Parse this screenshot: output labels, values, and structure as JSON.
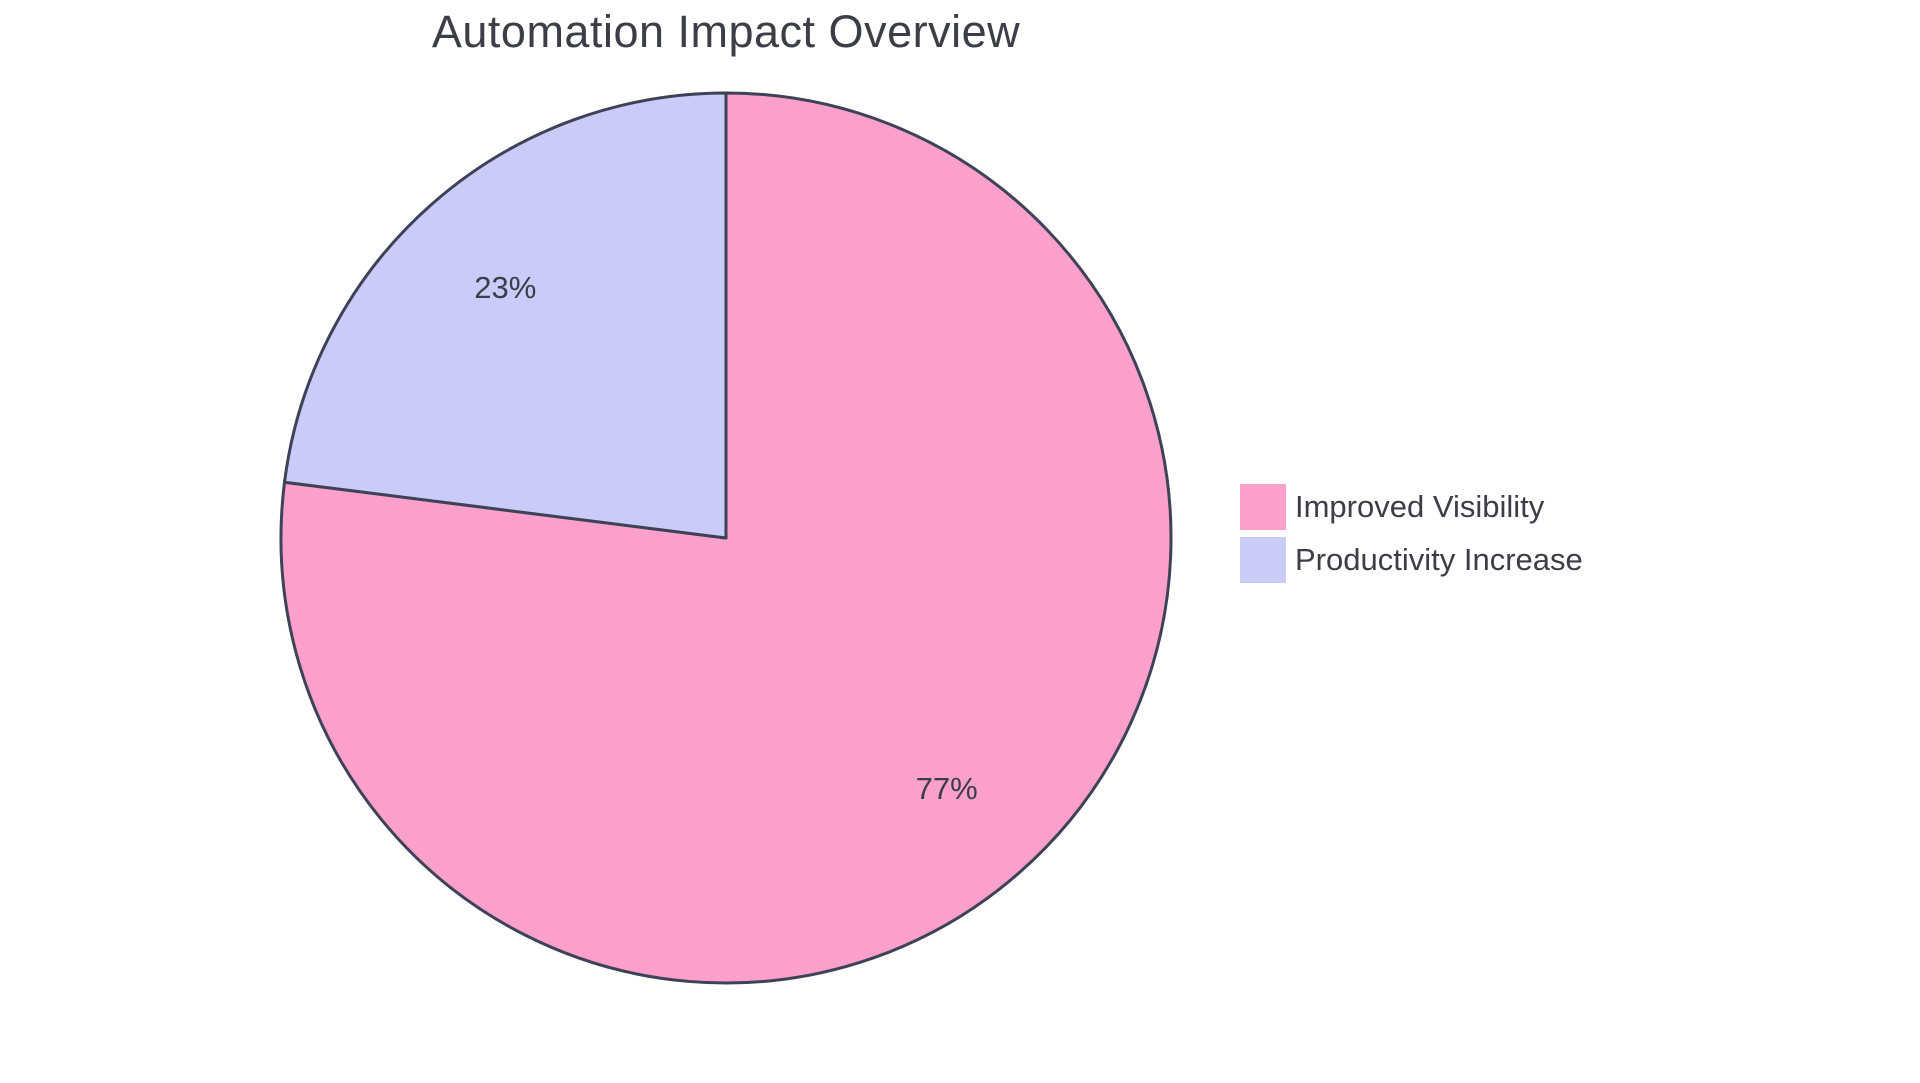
{
  "page": {
    "background_color": "#FFFFFF"
  },
  "chart_data": {
    "type": "pie",
    "title": "Automation Impact Overview",
    "categories": [
      "Improved Visibility",
      "Productivity Increase"
    ],
    "values": [
      77,
      23
    ],
    "pct_labels": [
      "77%",
      "23%"
    ],
    "colors": [
      "#FB9FCB",
      "#C9CBF8"
    ],
    "slice_border_color": "#3E4257",
    "text_color": "#3B3E47",
    "start_angle_deg": 0,
    "direction": "clockwise",
    "legend_position": "right",
    "labels_inside": true
  },
  "legend": {
    "items": [
      {
        "label": "Improved Visibility",
        "color": "#FB9FCB"
      },
      {
        "label": "Productivity Increase",
        "color": "#C9CBF8"
      }
    ]
  }
}
